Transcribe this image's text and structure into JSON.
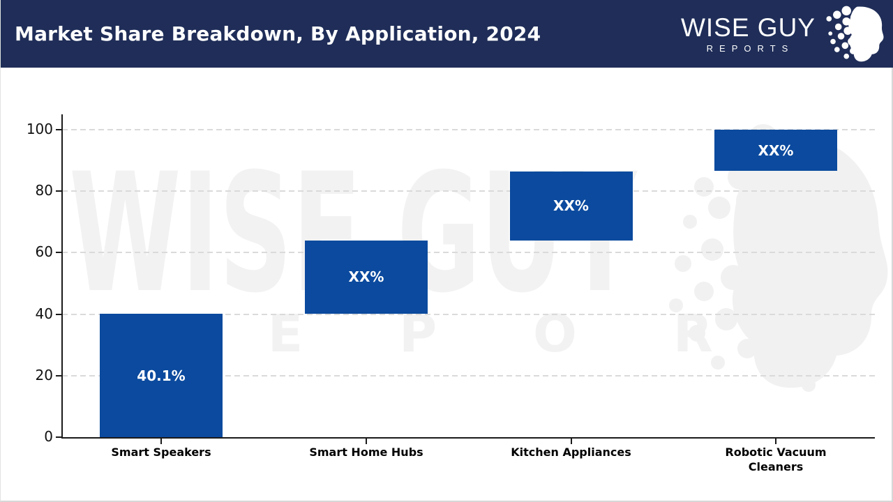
{
  "header": {
    "title": "Market Share Breakdown, By Application, 2024",
    "logo": {
      "line1": "WISE GUY",
      "line2": "REPORTS"
    }
  },
  "watermark": {
    "line1": "WISE GUY",
    "line2": "R E P O R T S"
  },
  "chart_data": {
    "type": "bar",
    "variant": "waterfall",
    "title": "Market Share Breakdown, By Application, 2024",
    "categories": [
      "Smart Speakers",
      "Smart Home Hubs",
      "Kitchen Appliances",
      "Robotic Vacuum Cleaners"
    ],
    "segments": [
      {
        "category": "Smart Speakers",
        "start": 0,
        "end": 40.1,
        "label": "40.1%"
      },
      {
        "category": "Smart Home Hubs",
        "start": 40.1,
        "end": 64.0,
        "label": "XX%"
      },
      {
        "category": "Kitchen Appliances",
        "start": 64.0,
        "end": 86.4,
        "label": "XX%"
      },
      {
        "category": "Robotic Vacuum Cleaners",
        "start": 86.6,
        "end": 100,
        "label": "XX%"
      }
    ],
    "yticks": [
      0,
      20,
      40,
      60,
      80,
      100
    ],
    "ylim": [
      0,
      105
    ],
    "xlabel": "",
    "ylabel": "",
    "legend": "none",
    "grid": "horizontal-dashed",
    "bar_color": "#0b4a9e",
    "bar_label_color": "#ffffff"
  },
  "colors": {
    "header_bg": "#1f2d58",
    "bar": "#0b4a9e",
    "watermark": "#f2f2f2",
    "grid": "#dadada",
    "axis": "#1a1a1a"
  }
}
